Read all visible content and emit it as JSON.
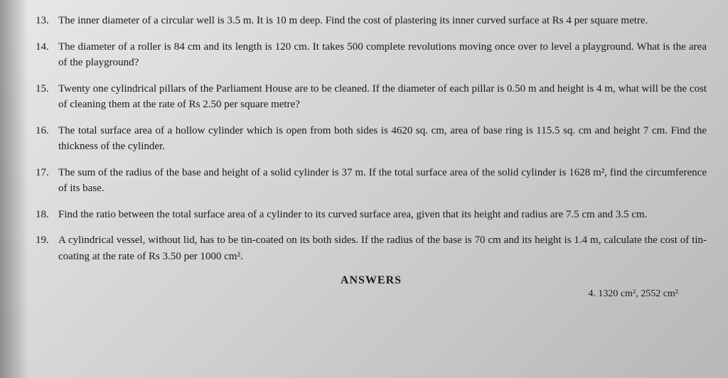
{
  "questions": [
    {
      "num": "13.",
      "text": "The inner diameter of a circular well is 3.5 m. It is 10 m deep. Find the cost of plastering its inner curved surface at Rs 4 per square metre."
    },
    {
      "num": "14.",
      "text": "The diameter of a roller is 84 cm and its length is 120 cm. It takes 500 complete revolutions moving once over to level a playground. What is the area of the playground?"
    },
    {
      "num": "15.",
      "text": "Twenty one cylindrical pillars of the Parliament House are to be cleaned. If the diameter of each pillar is 0.50 m and height is 4 m, what will be the cost of cleaning them at the rate of Rs 2.50 per square metre?"
    },
    {
      "num": "16.",
      "text": "The total surface area of a hollow cylinder which is open from both sides is 4620 sq. cm, area of base ring is 115.5 sq. cm and height 7 cm. Find the thickness of the cylinder."
    },
    {
      "num": "17.",
      "text": "The sum of the radius of the base and height of a solid cylinder is 37 m. If the total surface area of the solid cylinder is 1628 m², find the circumference of its base."
    },
    {
      "num": "18.",
      "text": "Find the ratio between the total surface area of a cylinder to its curved surface area, given that its height and radius are 7.5 cm and 3.5 cm."
    },
    {
      "num": "19.",
      "text": "A cylindrical vessel, without lid, has to be tin-coated on its both sides. If the radius of the base is 70 cm and its height is 1.4 m, calculate the cost of tin-coating at the rate of Rs 3.50 per 1000 cm²."
    }
  ],
  "answersHeading": "ANSWERS",
  "answersPartial": "4. 1320 cm², 2552 cm²"
}
